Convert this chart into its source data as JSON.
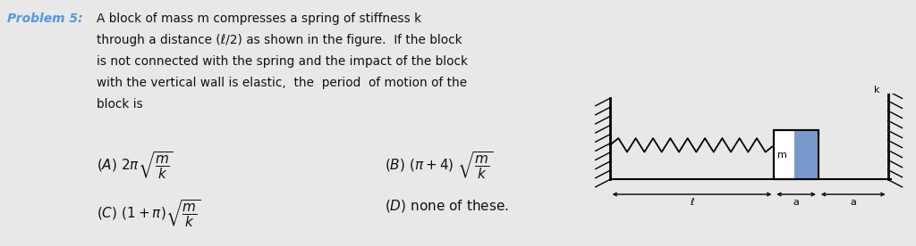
{
  "problem_label": "Problem 5:",
  "problem_text_line1": "A block of mass m compresses a spring of stiffness k",
  "problem_text_line2": "through a distance (ℓ/2) as shown in the figure.  If the block",
  "problem_text_line3": "is not connected with the spring and the impact of the block",
  "problem_text_line4": "with the vertical wall is elastic,  the  period  of motion of the",
  "problem_text_line5": "block is",
  "bg_color": "#e8e8e8",
  "problem_label_color": "#5599dd",
  "text_color": "#111111",
  "diagram_bg": "#e8e8e8",
  "block_color": "#6688cc",
  "spring_color": "#888888",
  "wall_color": "#555555"
}
